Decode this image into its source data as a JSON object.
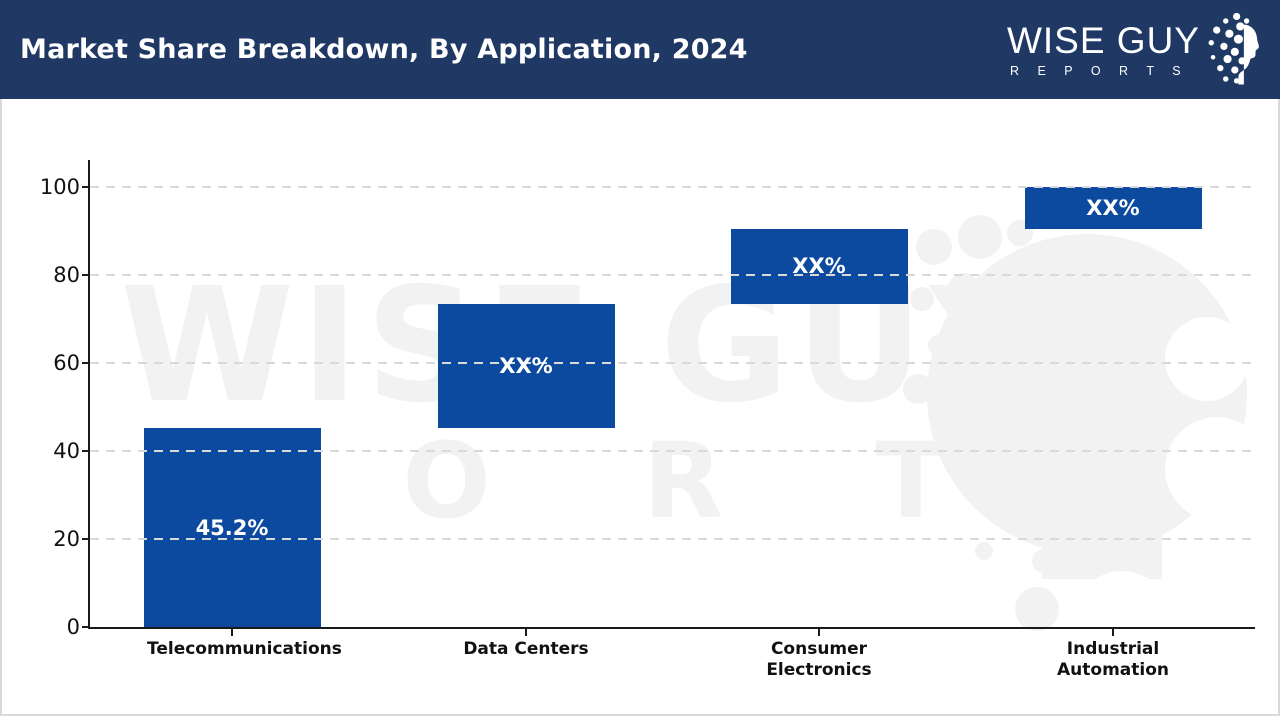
{
  "header": {
    "title": "Market Share Breakdown, By Application, 2024",
    "logo": {
      "line1": "WISE GUY",
      "line2": "R E P O R T S"
    }
  },
  "watermark": {
    "line1": "WISE GUY",
    "line2": "P O R T S"
  },
  "chart_data": {
    "type": "bar",
    "subtype": "waterfall",
    "title": "Market Share Breakdown, By Application, 2024",
    "categories": [
      "Telecommunications",
      "Data Centers",
      "Consumer Electronics",
      "Industrial Automation"
    ],
    "bars": [
      {
        "category": "Telecommunications",
        "start": 0,
        "end": 45.2,
        "label": "45.2%"
      },
      {
        "category": "Data Centers",
        "start": 45.2,
        "end": 73.4,
        "label": "XX%"
      },
      {
        "category": "Consumer Electronics",
        "start": 73.4,
        "end": 90.5,
        "label": "XX%"
      },
      {
        "category": "Industrial Automation",
        "start": 90.5,
        "end": 100.0,
        "label": "XX%"
      }
    ],
    "xlabel": "",
    "ylabel": "",
    "yticks": [
      0,
      20,
      40,
      60,
      80,
      100
    ],
    "ylim": [
      0,
      106
    ],
    "grid": "horizontal-dashed",
    "legend": "none"
  },
  "colors": {
    "header_bg": "#1f3864",
    "bar": "#0b4a9e",
    "grid": "#d9d9d9",
    "axis": "#1a1a1a",
    "bar_label": "#ffffff",
    "watermark": "#f2f2f2"
  }
}
